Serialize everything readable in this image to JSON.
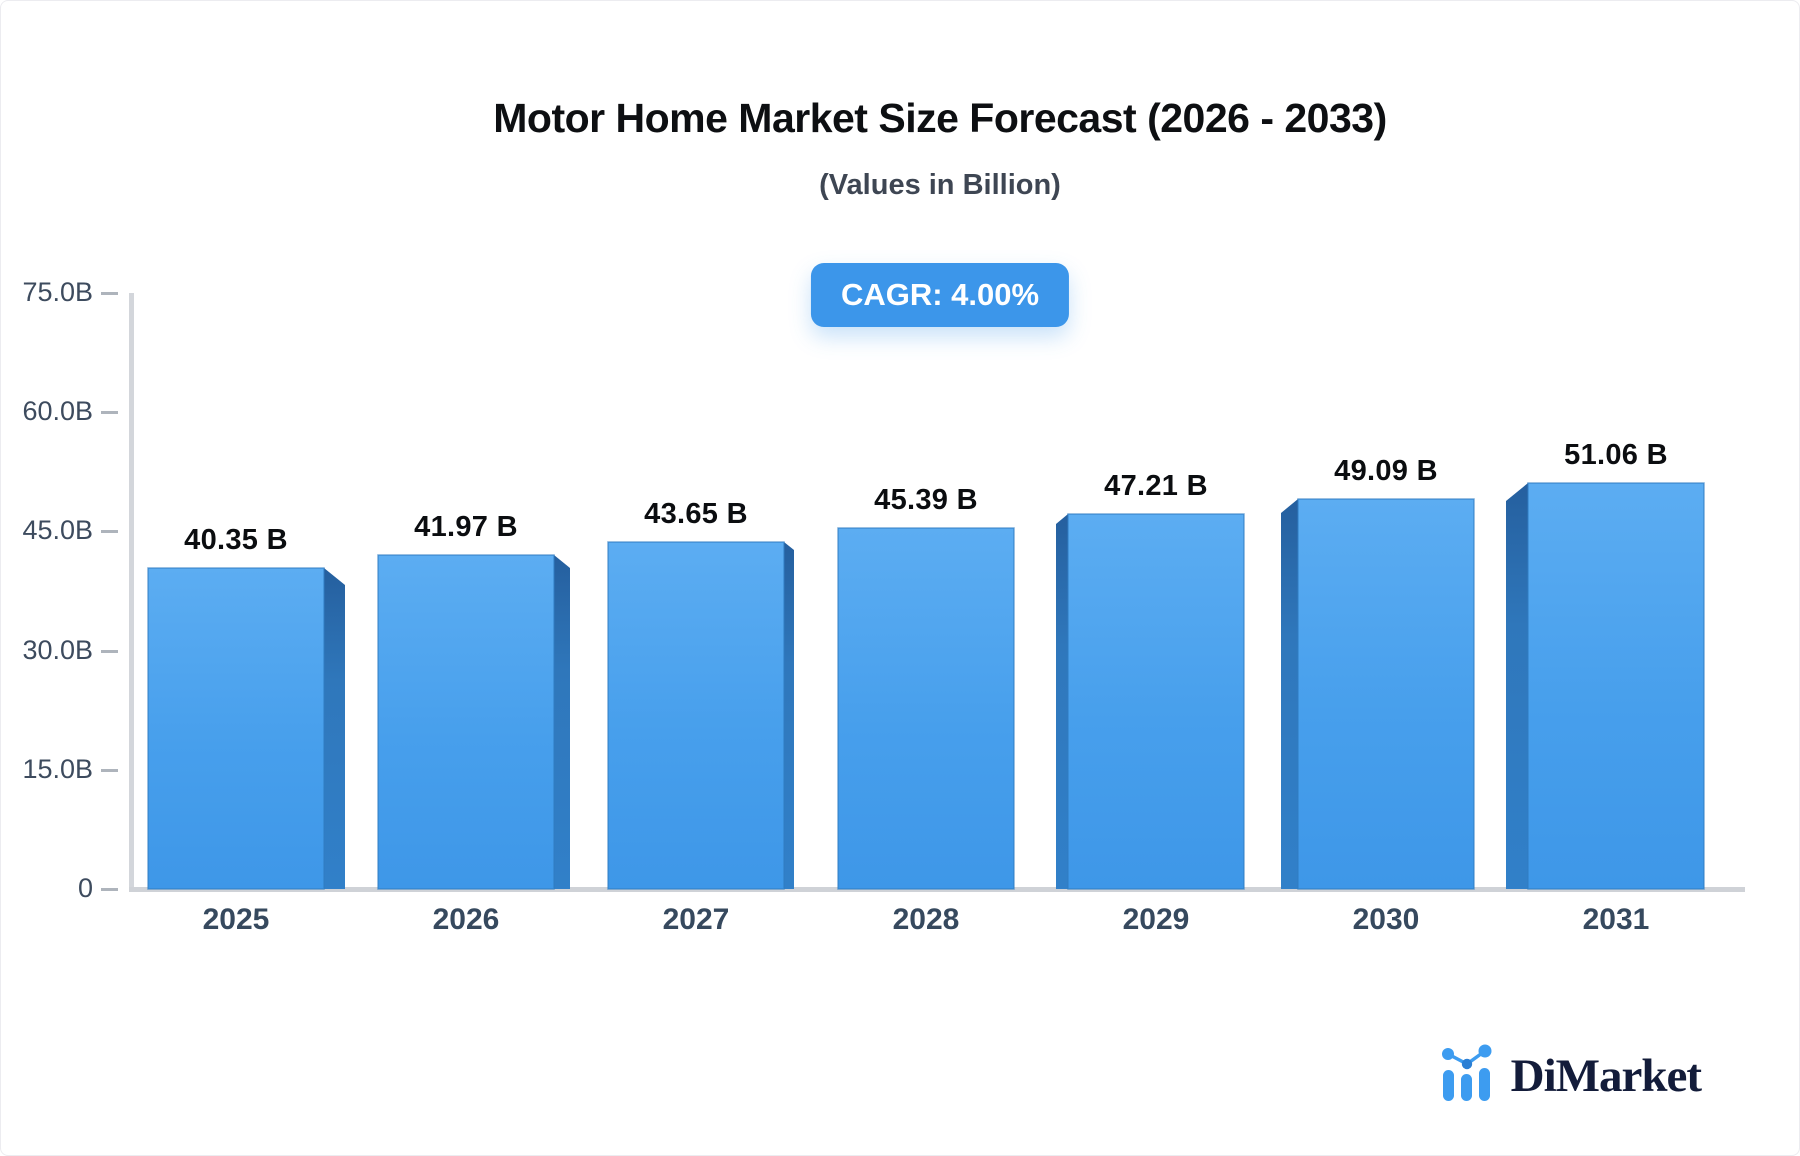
{
  "header": {
    "title": "Motor Home Market Size Forecast (2026 - 2033)",
    "subtitle": "(Values in Billion)",
    "cagr_badge": "CAGR: 4.00%"
  },
  "brand": {
    "name": "DiMarket",
    "icon": "mini-bar-chart-logo-icon",
    "icon_color": "#3d9cf0",
    "text_color": "#131c3a"
  },
  "chart_data": {
    "type": "bar",
    "style": "3d-perspective-center",
    "title": "Motor Home Market Size Forecast (2026 - 2033)",
    "subtitle": "(Values in Billion)",
    "cagr": "4.00%",
    "categories": [
      "2025",
      "2026",
      "2027",
      "2028",
      "2029",
      "2030",
      "2031"
    ],
    "values": [
      40.35,
      41.97,
      43.65,
      45.39,
      47.21,
      49.09,
      51.06
    ],
    "value_labels": [
      "40.35 B",
      "41.97 B",
      "43.65 B",
      "45.39 B",
      "47.21 B",
      "49.09 B",
      "51.06 B"
    ],
    "unit": "Billion",
    "xlabel": "",
    "ylabel": "",
    "ylim": [
      0,
      75
    ],
    "yticks": [
      {
        "label": "75.0B",
        "value": 75
      },
      {
        "label": "60.0B",
        "value": 60
      },
      {
        "label": "45.0B",
        "value": 45
      },
      {
        "label": "30.0B",
        "value": 30
      },
      {
        "label": "15.0B",
        "value": 15
      },
      {
        "label": "0",
        "value": 0
      }
    ],
    "grid": false,
    "legend": "none",
    "colors": {
      "bar_face_top": "#5cadf2",
      "bar_face_bottom": "#3e97e8",
      "bar_side_dark": "#255f9e",
      "bar_side_light": "#3180c9",
      "bar_edge": "#2f7dc2",
      "badge": "#3c96ea",
      "axis": "#d3d6db",
      "tick": "#aeb4bc",
      "y_label": "#3d4b5e",
      "x_label": "#36495e"
    }
  }
}
